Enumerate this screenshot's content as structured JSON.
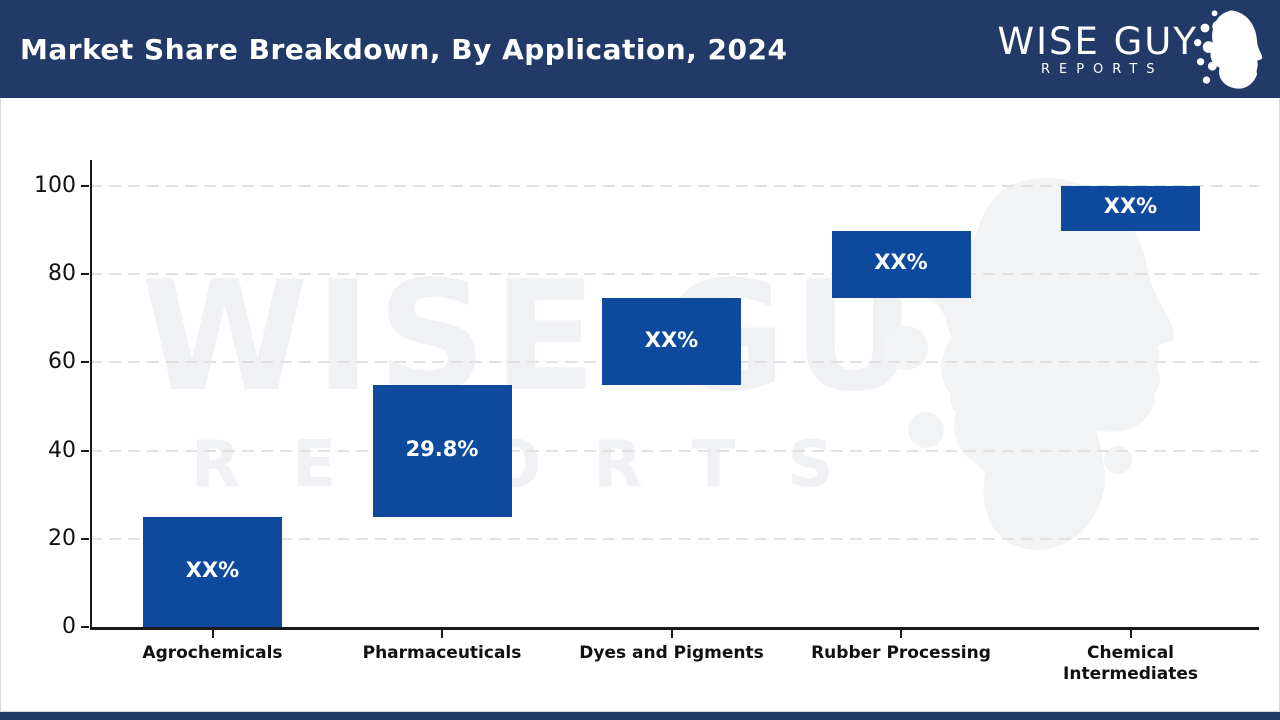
{
  "header": {
    "title": "Market Share Breakdown, By Application, 2024",
    "logo_line1": "WISE GUY",
    "logo_line2": "REPORTS"
  },
  "watermark": {
    "line1": "WISE GUY",
    "line2": "REPORTS"
  },
  "colors": {
    "header_bg": "#223A67",
    "bar_fill": "#0D4A9E",
    "grid_line": "#E1E1E1",
    "axis": "#1A1A1A",
    "bar_label_text": "#FFFFFF",
    "watermark": "#F0F1F4",
    "footer_bg": "#223A67"
  },
  "chart_data": {
    "type": "bar",
    "subtype": "waterfall-floating-bars",
    "title": "Market Share Breakdown, By Application, 2024",
    "categories": [
      "Agrochemicals",
      "Pharmaceuticals",
      "Dyes and Pigments",
      "Rubber Processing",
      "Chemical Intermediates"
    ],
    "bars": [
      {
        "category": "Agrochemicals",
        "label": "XX%",
        "start": 0,
        "end": 25
      },
      {
        "category": "Pharmaceuticals",
        "label": "29.8%",
        "start": 25,
        "end": 54.8
      },
      {
        "category": "Dyes and Pigments",
        "label": "XX%",
        "start": 54.8,
        "end": 74.6
      },
      {
        "category": "Rubber Processing",
        "label": "XX%",
        "start": 74.6,
        "end": 89.8
      },
      {
        "category": "Chemical Intermediates",
        "label": "XX%",
        "start": 89.8,
        "end": 100
      }
    ],
    "yticks": [
      0,
      20,
      40,
      60,
      80,
      100
    ],
    "ylim": [
      0,
      105
    ],
    "xlabel": "",
    "ylabel": "",
    "grid": "horizontal-dashed",
    "legend": "none"
  }
}
